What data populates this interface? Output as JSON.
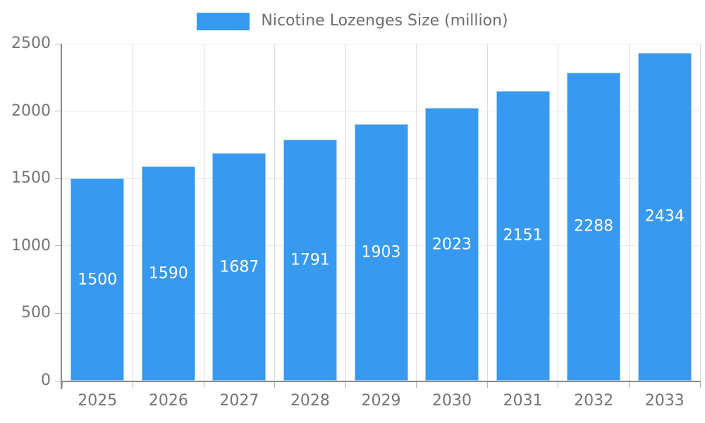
{
  "legend": {
    "label": "Nicotine Lozenges Size (million)"
  },
  "colors": {
    "bar_fill": "#3899f0",
    "bar_border": "#a8d0f5",
    "axis_line": "#8a8a8a",
    "grid_h": "#e8e8e8",
    "grid_v": "#dddddd",
    "tick": "#b0b0b0",
    "axis_text": "#757575",
    "bar_label_text": "#ffffff",
    "legend_text": "#6e6e6e"
  },
  "chart_data": {
    "type": "bar",
    "title": "",
    "series_name": "Nicotine Lozenges Size (million)",
    "categories": [
      "2025",
      "2026",
      "2027",
      "2028",
      "2029",
      "2030",
      "2031",
      "2032",
      "2033"
    ],
    "values": [
      1500,
      1590,
      1687,
      1791,
      1903,
      2023,
      2151,
      2288,
      2434
    ],
    "xlabel": "",
    "ylabel": "",
    "ylim": [
      0,
      2500
    ],
    "y_ticks": [
      0,
      500,
      1000,
      1500,
      2000,
      2500
    ],
    "grid": "on",
    "legend_position": "top",
    "value_labels": "inside-center-white"
  }
}
